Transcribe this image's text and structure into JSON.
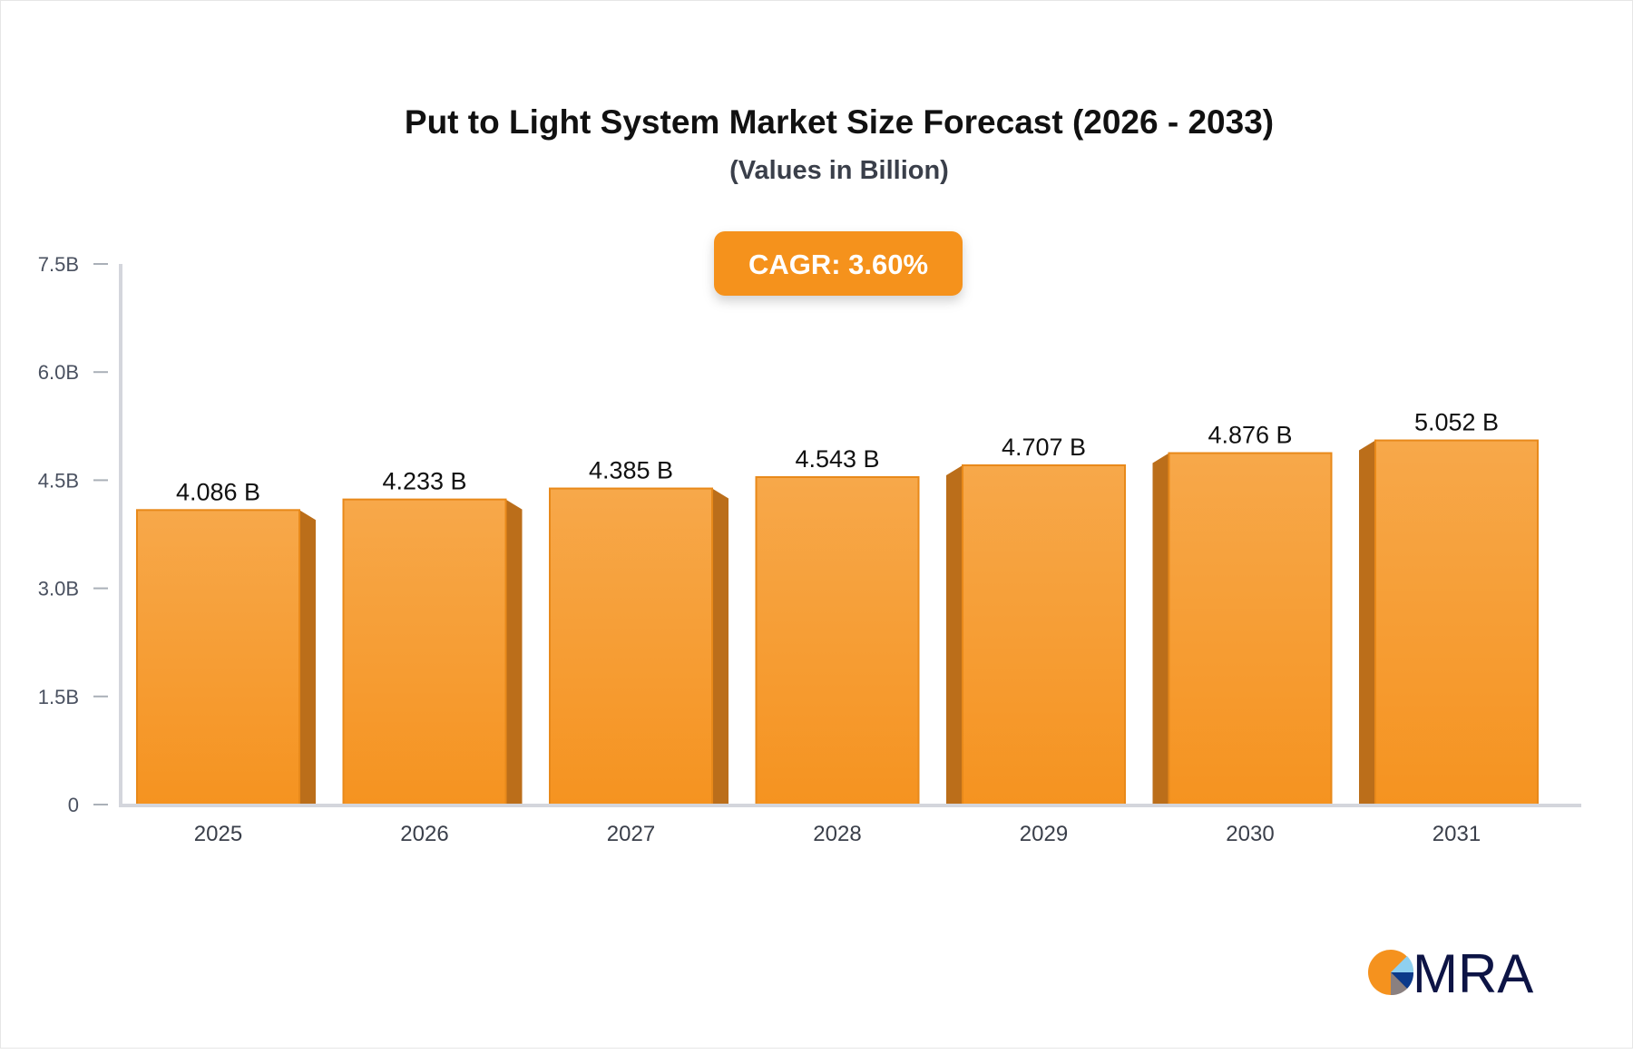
{
  "chart_data": {
    "type": "bar",
    "title": "Put to Light System Market Size Forecast (2026 - 2033)",
    "subtitle": "(Values in Billion)",
    "badge": "CAGR: 3.60%",
    "categories": [
      "2025",
      "2026",
      "2027",
      "2028",
      "2029",
      "2030",
      "2031"
    ],
    "values": [
      4.086,
      4.233,
      4.385,
      4.543,
      4.707,
      4.876,
      5.052
    ],
    "value_labels": [
      "4.086 B",
      "4.233 B",
      "4.385 B",
      "4.543 B",
      "4.707 B",
      "4.876 B",
      "5.052 B"
    ],
    "yticks": [
      0,
      1.5,
      3.0,
      4.5,
      6.0,
      7.5
    ],
    "ytick_labels": [
      "0",
      "1.5B",
      "3.0B",
      "4.5B",
      "6.0B",
      "7.5B"
    ],
    "ylim": [
      0,
      7.5
    ],
    "xlabel": "",
    "ylabel": "",
    "grid": false,
    "colors": {
      "bar_top": "#f7a84a",
      "bar_bottom": "#f59320",
      "bar_side": "#bb6e1a",
      "badge": "#f5921e",
      "axis": "#d4d6dc"
    }
  },
  "logo": {
    "text": "MRA"
  }
}
